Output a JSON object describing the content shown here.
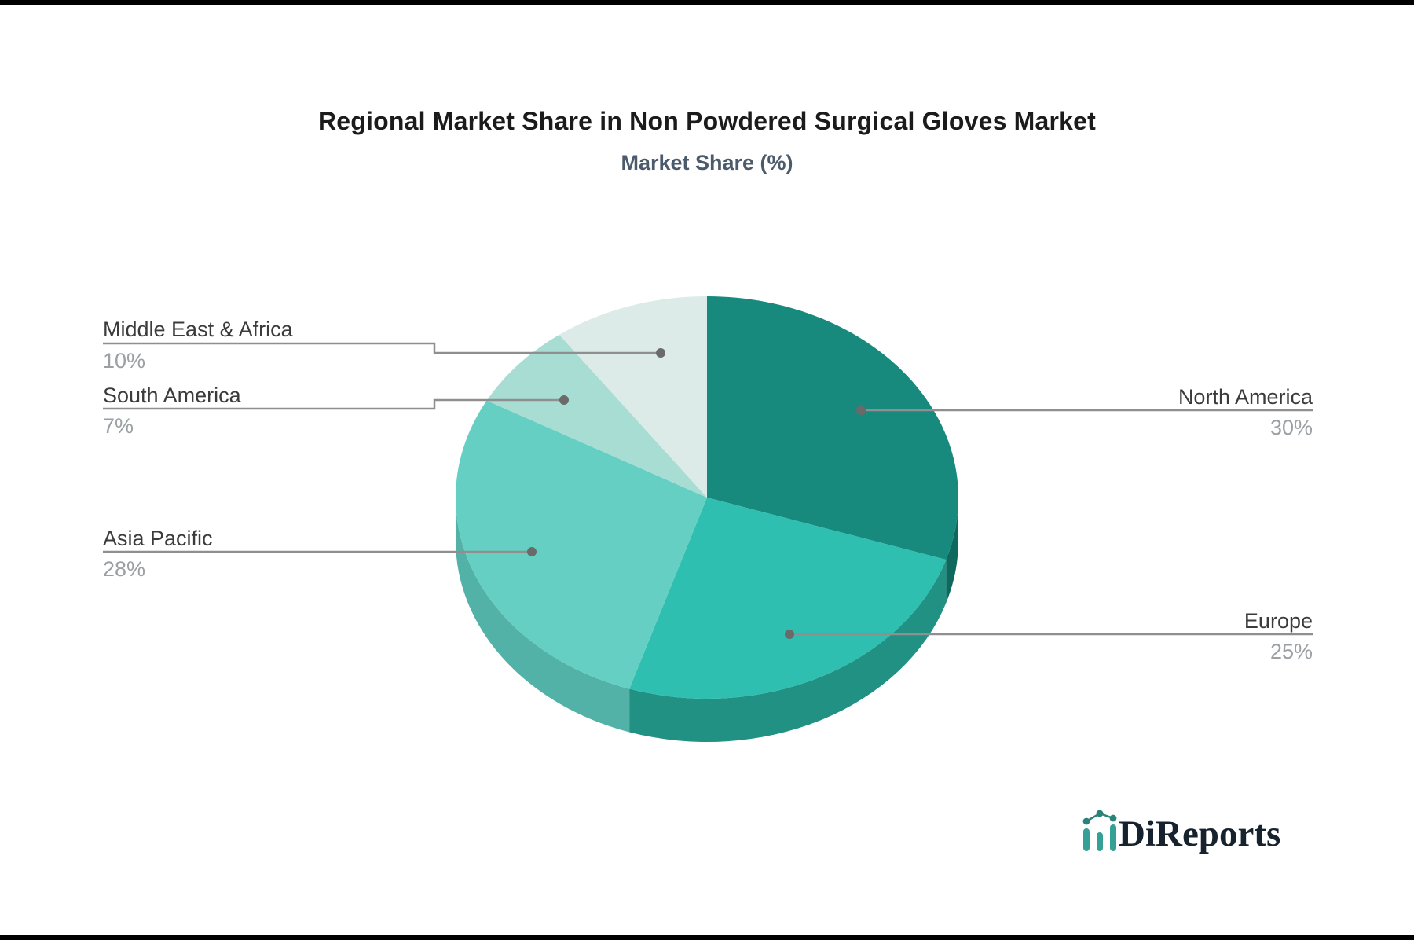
{
  "title": "Regional Market Share in Non Powdered Surgical Gloves Market",
  "subtitle": "Market Share (%)",
  "logo": {
    "text": "DiReports",
    "icon": "bar-line-chart-icon",
    "icon_color": "#35a096",
    "icon_accent_color": "#2b8278",
    "text_color": "#16222e"
  },
  "chart_data": {
    "type": "pie",
    "title": "Regional Market Share in Non Powdered Surgical Gloves Market",
    "subtitle": "Market Share (%)",
    "style": "3d-pie, starts at 12 o'clock, clockwise",
    "slices": [
      {
        "label": "North America",
        "value": 30,
        "pct_label": "30%",
        "color": "#178a7d",
        "depth_color": "#0e685e",
        "label_side": "right"
      },
      {
        "label": "Europe",
        "value": 25,
        "pct_label": "25%",
        "color": "#2ebfb0",
        "depth_color": "#219184",
        "label_side": "right"
      },
      {
        "label": "Asia Pacific",
        "value": 28,
        "pct_label": "28%",
        "color": "#66cfc4",
        "depth_color": "#53b2a7",
        "label_side": "left"
      },
      {
        "label": "South America",
        "value": 7,
        "pct_label": "7%",
        "color": "#a8ddd3",
        "depth_color": "#8cc5ba",
        "label_side": "left"
      },
      {
        "label": "Middle East & Africa",
        "value": 10,
        "pct_label": "10%",
        "color": "#dcebe7",
        "depth_color": "#c2d8d2",
        "label_side": "left"
      }
    ],
    "legend_position": "callout-labels",
    "colors": {
      "connector_line": "#8f8f8f",
      "connector_dot": "#6a6a6a",
      "label_text": "#3b3b3b",
      "pct_text": "#9aa0a4"
    }
  }
}
